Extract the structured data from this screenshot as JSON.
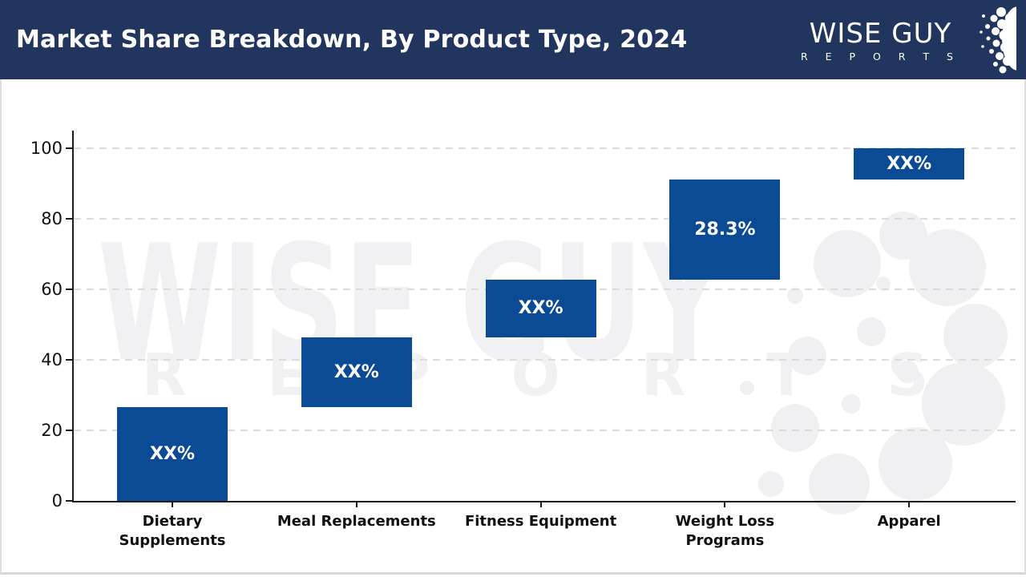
{
  "header": {
    "title": "Market Share Breakdown, By Product Type, 2024",
    "logo": {
      "name": "WISE GUY",
      "tagline": "R E P O R T S"
    }
  },
  "watermark": {
    "line1": "WISE GUY",
    "line2": "R E P O R T S"
  },
  "chart_data": {
    "type": "bar",
    "subtype": "waterfall",
    "title": "Market Share Breakdown, By Product Type, 2024",
    "xlabel": "",
    "ylabel": "",
    "categories": [
      "Dietary\nSupplements",
      "Meal Replacements",
      "Fitness Equipment",
      "Weight Loss\nPrograms",
      "Apparel"
    ],
    "segments": [
      {
        "category": "Dietary Supplements",
        "start": 0,
        "end": 26.5,
        "label": "XX%"
      },
      {
        "category": "Meal Replacements",
        "start": 26.5,
        "end": 46.5,
        "label": "XX%"
      },
      {
        "category": "Fitness Equipment",
        "start": 46.5,
        "end": 62.8,
        "label": "XX%"
      },
      {
        "category": "Weight Loss Programs",
        "start": 62.8,
        "end": 91.1,
        "label": "28.3%",
        "value": 28.3
      },
      {
        "category": "Apparel",
        "start": 91.1,
        "end": 100,
        "label": "XX%"
      }
    ],
    "y_ticks": [
      0,
      20,
      40,
      60,
      80,
      100
    ],
    "ylim": [
      0,
      105.5
    ],
    "grid": true,
    "legend": false,
    "colors": {
      "bar": "#0b4a94",
      "bar_label": "#ffffff",
      "axis": "#1c1c1c",
      "gridline": "#dcdcdc",
      "tick_label": "#111111",
      "header_bg": "#21355f",
      "header_text": "#ffffff",
      "watermark": "#f1f1f3",
      "panel_border": "#d9d9d9"
    }
  }
}
